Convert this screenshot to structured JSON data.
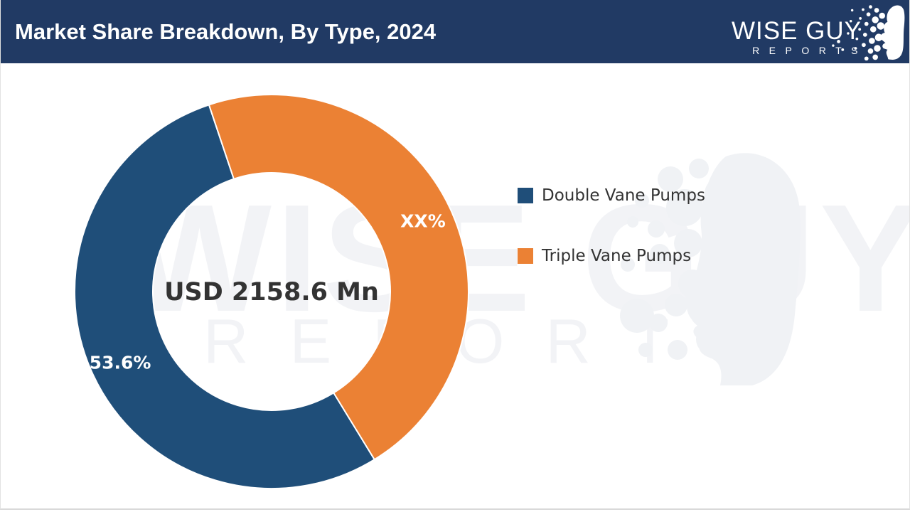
{
  "header": {
    "title": "Market Share Breakdown, By Type, 2024",
    "logo": {
      "name": "WISE GUY",
      "sub": "REPORTS"
    },
    "bg_color": "#213A64"
  },
  "watermark": {
    "line1": "WISE GUY",
    "line2": "REPORTS"
  },
  "chart_data": {
    "type": "pie",
    "subtype": "donut",
    "title": "Market Share Breakdown, By Type, 2024",
    "center_label": "USD 2158.6 Mn",
    "start_angle_deg": 148.5,
    "direction": "clockwise",
    "donut_hole_ratio": 0.6,
    "legend_position": "right",
    "slices": [
      {
        "label": "Double Vane Pumps",
        "value": 53.6,
        "display_label": "53.6%",
        "color": "#1F4E79"
      },
      {
        "label": "Triple Vane Pumps",
        "value": 46.4,
        "display_label": "XX%",
        "color": "#EB8134"
      }
    ]
  }
}
